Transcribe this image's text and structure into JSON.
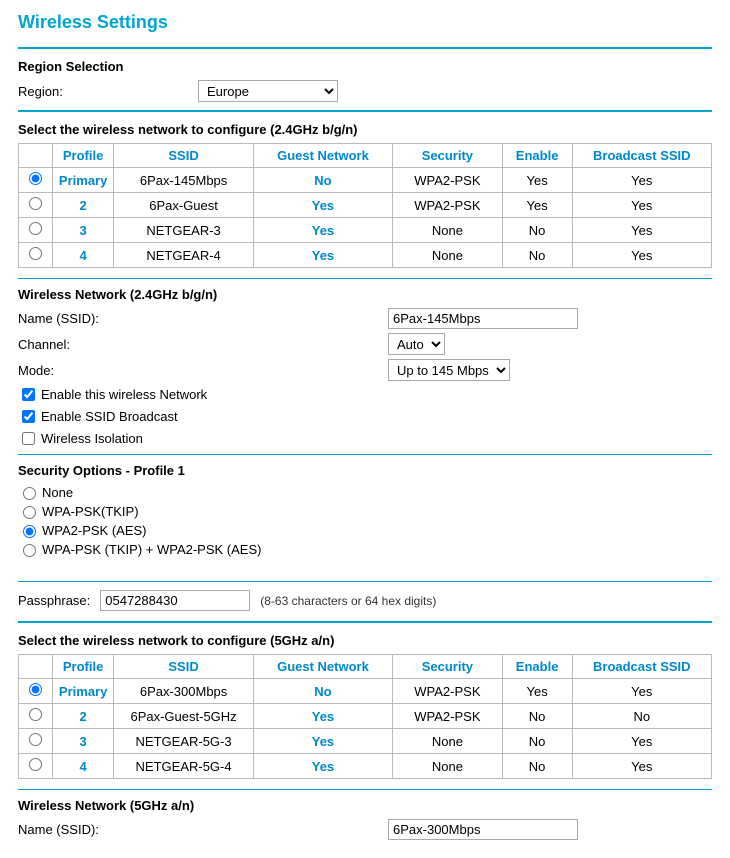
{
  "title": "Wireless Settings",
  "region": {
    "heading": "Region Selection",
    "label": "Region:",
    "value": "Europe"
  },
  "net24": {
    "heading": "Select the wireless network to configure (2.4GHz b/g/n)",
    "columns": [
      "",
      "Profile",
      "SSID",
      "Guest Network",
      "Security",
      "Enable",
      "Broadcast SSID"
    ],
    "rows": [
      {
        "selected": true,
        "profile": "Primary",
        "ssid": "6Pax-145Mbps",
        "guest": "No",
        "security": "WPA2-PSK",
        "enable": "Yes",
        "broadcast": "Yes"
      },
      {
        "selected": false,
        "profile": "2",
        "ssid": "6Pax-Guest",
        "guest": "Yes",
        "security": "WPA2-PSK",
        "enable": "Yes",
        "broadcast": "Yes"
      },
      {
        "selected": false,
        "profile": "3",
        "ssid": "NETGEAR-3",
        "guest": "Yes",
        "security": "None",
        "enable": "No",
        "broadcast": "Yes"
      },
      {
        "selected": false,
        "profile": "4",
        "ssid": "NETGEAR-4",
        "guest": "Yes",
        "security": "None",
        "enable": "No",
        "broadcast": "Yes"
      }
    ]
  },
  "wn24": {
    "heading": "Wireless Network (2.4GHz b/g/n)",
    "name_label": "Name (SSID):",
    "name_value": "6Pax-145Mbps",
    "channel_label": "Channel:",
    "channel_value": "Auto",
    "mode_label": "Mode:",
    "mode_value": "Up to 145 Mbps",
    "cb_enable_label": "Enable this wireless Network",
    "cb_enable_checked": true,
    "cb_ssid_label": "Enable SSID Broadcast",
    "cb_ssid_checked": true,
    "cb_iso_label": "Wireless Isolation",
    "cb_iso_checked": false
  },
  "sec24": {
    "heading": "Security Options - Profile 1",
    "options": [
      {
        "label": "None",
        "checked": false
      },
      {
        "label": "WPA-PSK(TKIP)",
        "checked": false
      },
      {
        "label": "WPA2-PSK (AES)",
        "checked": true
      },
      {
        "label": "WPA-PSK (TKIP) + WPA2-PSK (AES)",
        "checked": false
      }
    ]
  },
  "pass": {
    "label": "Passphrase:",
    "value": "0547288430",
    "hint": "(8-63 characters or 64 hex digits)"
  },
  "net5": {
    "heading": "Select the wireless network to configure (5GHz a/n)",
    "columns": [
      "",
      "Profile",
      "SSID",
      "Guest Network",
      "Security",
      "Enable",
      "Broadcast SSID"
    ],
    "rows": [
      {
        "selected": true,
        "profile": "Primary",
        "ssid": "6Pax-300Mbps",
        "guest": "No",
        "security": "WPA2-PSK",
        "enable": "Yes",
        "broadcast": "Yes"
      },
      {
        "selected": false,
        "profile": "2",
        "ssid": "6Pax-Guest-5GHz",
        "guest": "Yes",
        "security": "WPA2-PSK",
        "enable": "No",
        "broadcast": "No"
      },
      {
        "selected": false,
        "profile": "3",
        "ssid": "NETGEAR-5G-3",
        "guest": "Yes",
        "security": "None",
        "enable": "No",
        "broadcast": "Yes"
      },
      {
        "selected": false,
        "profile": "4",
        "ssid": "NETGEAR-5G-4",
        "guest": "Yes",
        "security": "None",
        "enable": "No",
        "broadcast": "Yes"
      }
    ]
  },
  "wn5": {
    "heading": "Wireless Network (5GHz a/n)",
    "name_label": "Name (SSID):",
    "name_value": "6Pax-300Mbps"
  }
}
